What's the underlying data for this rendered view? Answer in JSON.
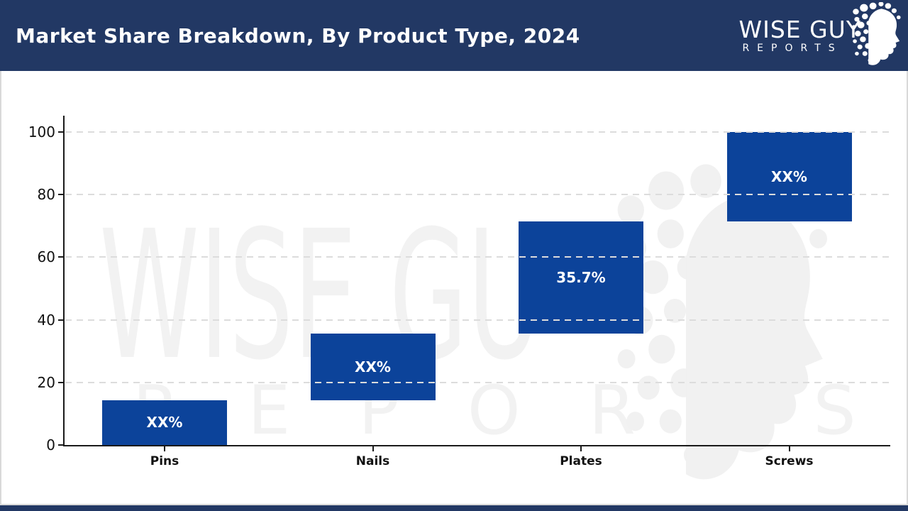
{
  "header": {
    "title": "Market Share Breakdown, By Product Type, 2024",
    "logo": {
      "line1": "WISE GUY",
      "line2": "REPORTS"
    }
  },
  "watermark": {
    "line1": "WISE GU",
    "line2": "R E P O R T S"
  },
  "colors": {
    "header_bg": "#223864",
    "footer_bg": "#223864",
    "bar": "#0c439a",
    "bar_label": "#ffffff",
    "axis": "#1a1a1a",
    "grid": "#dcdcdc",
    "tick_text": "#111111",
    "watermark": "#f2f2f2"
  },
  "chart_data": {
    "type": "bar",
    "subtype": "waterfall",
    "title": "Market Share Breakdown, By Product Type, 2024",
    "categories": [
      "Pins",
      "Nails",
      "Plates",
      "Screws"
    ],
    "segments": [
      {
        "category": "Pins",
        "start": 0,
        "end": 14.3,
        "label": "XX%"
      },
      {
        "category": "Nails",
        "start": 14.3,
        "end": 35.7,
        "label": "XX%"
      },
      {
        "category": "Plates",
        "start": 35.7,
        "end": 71.4,
        "label": "35.7%"
      },
      {
        "category": "Screws",
        "start": 71.4,
        "end": 100,
        "label": "XX%"
      }
    ],
    "yticks": [
      0,
      20,
      40,
      60,
      80,
      100
    ],
    "ytick_labels": [
      "0",
      "20",
      "40",
      "60",
      "80",
      "100"
    ],
    "ylim": [
      0,
      105
    ],
    "xlabel": "",
    "ylabel": "",
    "grid": "dashed-horizontal",
    "legend": "none"
  }
}
